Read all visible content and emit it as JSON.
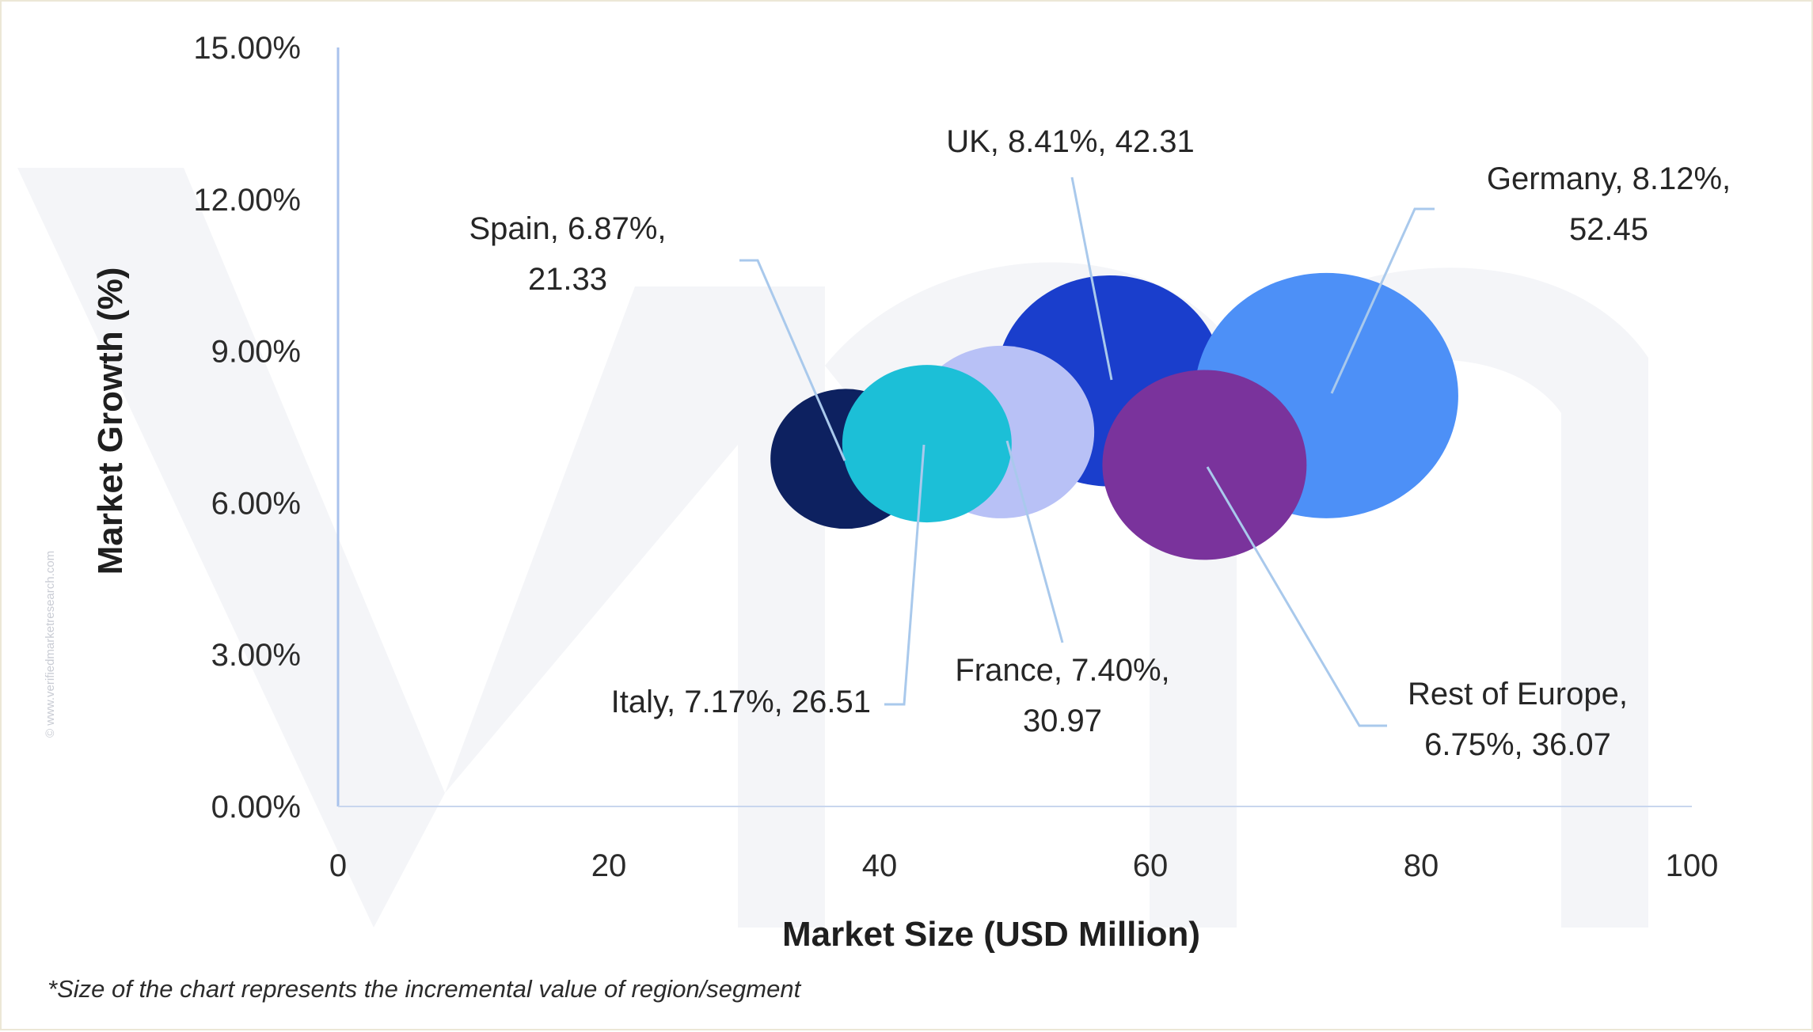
{
  "chart_data": {
    "type": "bubble",
    "title": "",
    "xlabel": "Market Size (USD Million)",
    "ylabel": "Market Growth (%)",
    "xlim": [
      0,
      100
    ],
    "ylim": [
      0,
      15
    ],
    "x_ticks": [
      "0",
      "20",
      "40",
      "60",
      "80",
      "100"
    ],
    "y_ticks": [
      "0.00%",
      "3.00%",
      "6.00%",
      "9.00%",
      "12.00%",
      "15.00%"
    ],
    "footnote": "*Size of the chart represents the incremental value of region/segment",
    "watermark": "© www.verifiedmarketresearch.com",
    "points": [
      {
        "name": "Spain",
        "growth": 6.87,
        "size": 21.33,
        "x": 37.5,
        "label": [
          "Spain, 6.87%,",
          "21.33"
        ],
        "color": "#0d2160"
      },
      {
        "name": "UK",
        "growth": 8.41,
        "size": 42.31,
        "x": 57.0,
        "label": [
          "UK, 8.41%, 42.31"
        ],
        "color": "#1a3ecc"
      },
      {
        "name": "Germany",
        "growth": 8.12,
        "size": 52.45,
        "x": 73.0,
        "label": [
          "Germany, 8.12%,",
          "52.45"
        ],
        "color": "#4d90f7"
      },
      {
        "name": "France",
        "growth": 7.4,
        "size": 30.97,
        "x": 49.0,
        "label": [
          "France, 7.40%,",
          "30.97"
        ],
        "color": "#b8c1f6"
      },
      {
        "name": "Rest of Europe",
        "growth": 6.75,
        "size": 36.07,
        "x": 64.0,
        "label": [
          "Rest of Europe,",
          "6.75%, 36.07"
        ],
        "color": "#7a339c"
      },
      {
        "name": "Italy",
        "growth": 7.17,
        "size": 26.51,
        "x": 43.5,
        "label": [
          "Italy, 7.17%, 26.51"
        ],
        "color": "#1cbfd7"
      }
    ]
  }
}
